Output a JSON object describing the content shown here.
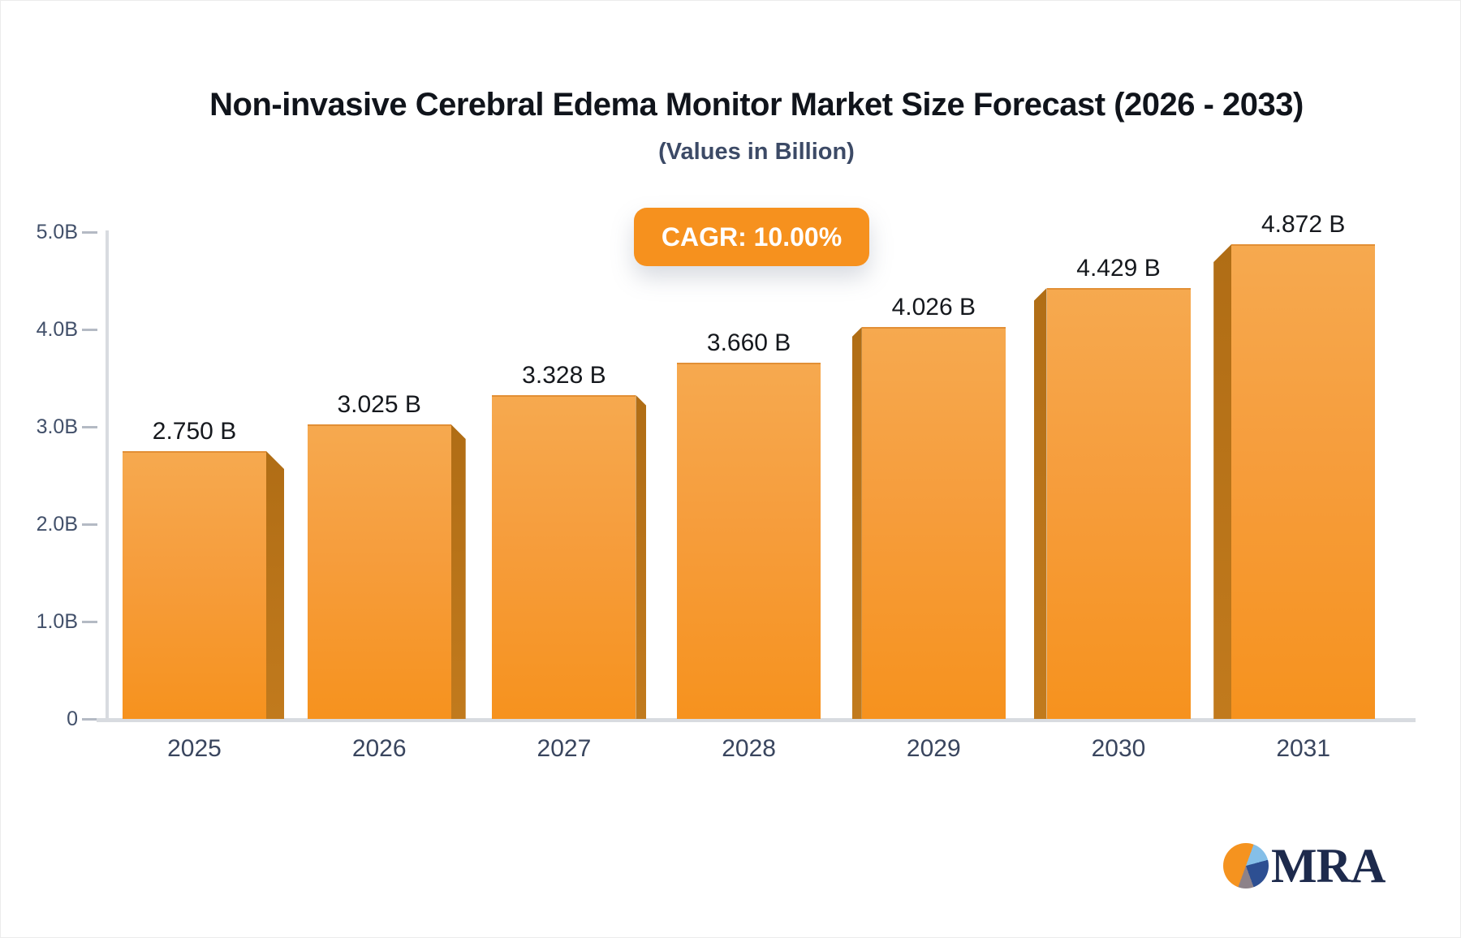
{
  "chart_data": {
    "type": "bar",
    "title": "Non-invasive Cerebral Edema Monitor Market Size Forecast (2026 - 2033)",
    "subtitle": "(Values in Billion)",
    "cagr_label": "CAGR: 10.00%",
    "categories": [
      "2025",
      "2026",
      "2027",
      "2028",
      "2029",
      "2030",
      "2031"
    ],
    "values": [
      2.75,
      3.025,
      3.328,
      3.66,
      4.026,
      4.429,
      4.872
    ],
    "bar_labels": [
      "2.750 B",
      "3.025 B",
      "3.328 B",
      "3.660 B",
      "4.026 B",
      "4.429 B",
      "4.872 B"
    ],
    "y_ticks": [
      {
        "label": "5.0B",
        "value": 5
      },
      {
        "label": "4.0B",
        "value": 4
      },
      {
        "label": "3.0B",
        "value": 3
      },
      {
        "label": "2.0B",
        "value": 2
      },
      {
        "label": "1.0B",
        "value": 1
      },
      {
        "label": "0",
        "value": 0
      }
    ],
    "ylim": [
      0,
      5
    ],
    "xlabel": "",
    "ylabel": "",
    "grid": false,
    "legend": false,
    "colors": {
      "bar_top": "#f6a94f",
      "bar_bottom": "#f6921e",
      "bar_side": "#bd7318",
      "badge_bg": "#f6911e",
      "axis_line": "#d8dbe0",
      "tick_text": "#42506a",
      "value_text": "#15181d",
      "title_text": "#10141b",
      "subtitle_text": "#3c4a66"
    }
  },
  "logo": {
    "text": "MRA"
  }
}
